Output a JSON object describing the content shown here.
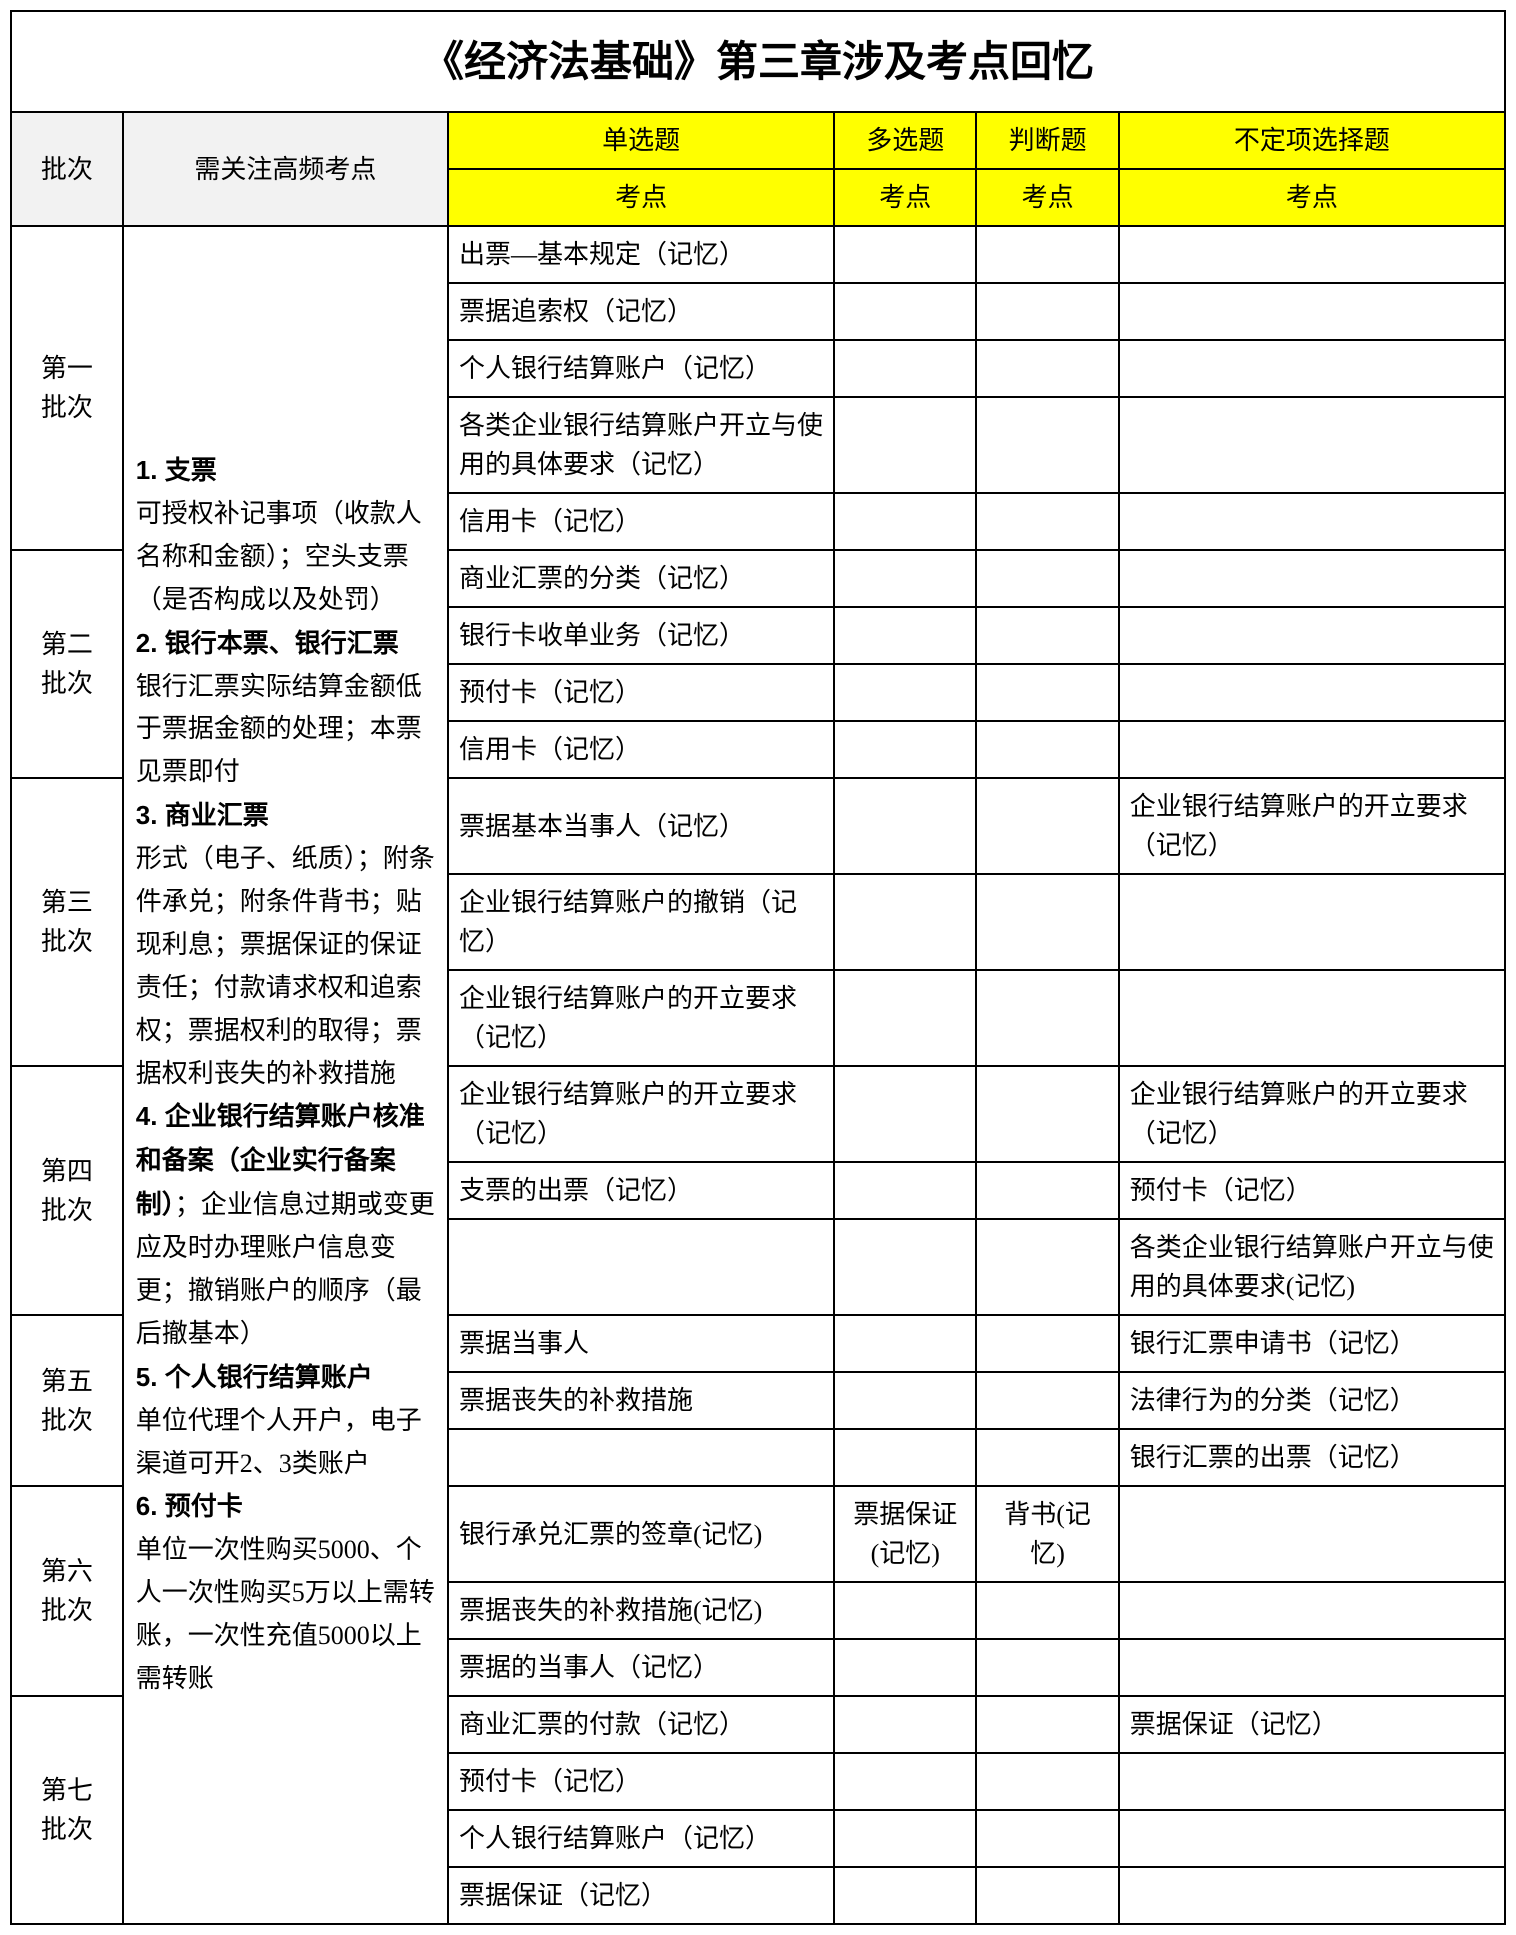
{
  "title": "《经济法基础》第三章涉及考点回忆",
  "headers": {
    "batch": "批次",
    "focus": "需关注高频考点",
    "single": "单选题",
    "multi": "多选题",
    "judge": "判断题",
    "undef": "不定项选择题",
    "kd": "考点"
  },
  "focus_points_html": "<b>1. 支票</b><br>可授权补记事项（收款人名称和金额）；空头支票（是否构成以及处罚）<br><b>2. 银行本票、银行汇票</b><br>银行汇票实际结算金额低于票据金额的处理；本票见票即付<br><b>3. 商业汇票</b><br>形式（电子、纸质）；附条件承兑；附条件背书；贴现利息；票据保证的保证责任；付款请求权和追索权；票据权利的取得；票据权利丧失的补救措施<br><b>4. 企业银行结算账户核准和备案（企业实行备案制）</b>；企业信息过期或变更应及时办理账户信息变更；撤销账户的顺序（最后撤基本）<br><b>5. 个人银行结算账户</b><br>单位代理个人开户，电子渠道可开2、3类账户<br><b>6. 预付卡</b><br>单位一次性购买5000、个人一次性购买5万以上需转账，一次性充值5000以上需转账",
  "batches": {
    "b1": "第一批次",
    "b2": "第二批次",
    "b3": "第三批次",
    "b4": "第四批次",
    "b5": "第五批次",
    "b6": "第六批次",
    "b7": "第七批次"
  },
  "rows": {
    "r1": {
      "s": "出票—基本规定（记忆）",
      "m": "",
      "j": "",
      "u": ""
    },
    "r2": {
      "s": "票据追索权（记忆）",
      "m": "",
      "j": "",
      "u": ""
    },
    "r3": {
      "s": "个人银行结算账户（记忆）",
      "m": "",
      "j": "",
      "u": ""
    },
    "r4": {
      "s": "各类企业银行结算账户开立与使用的具体要求（记忆）",
      "m": "",
      "j": "",
      "u": ""
    },
    "r5": {
      "s": "信用卡（记忆）",
      "m": "",
      "j": "",
      "u": ""
    },
    "r6": {
      "s": "商业汇票的分类（记忆）",
      "m": "",
      "j": "",
      "u": ""
    },
    "r7": {
      "s": "银行卡收单业务（记忆）",
      "m": "",
      "j": "",
      "u": ""
    },
    "r8": {
      "s": "预付卡（记忆）",
      "m": "",
      "j": "",
      "u": ""
    },
    "r9": {
      "s": "信用卡（记忆）",
      "m": "",
      "j": "",
      "u": ""
    },
    "r10": {
      "s": "票据基本当事人（记忆）",
      "m": "",
      "j": "",
      "u": "企业银行结算账户的开立要求（记忆）"
    },
    "r11": {
      "s": "企业银行结算账户的撤销（记忆）",
      "m": "",
      "j": "",
      "u": ""
    },
    "r12": {
      "s": "企业银行结算账户的开立要求（记忆）",
      "m": "",
      "j": "",
      "u": ""
    },
    "r13": {
      "s": "企业银行结算账户的开立要求（记忆）",
      "m": "",
      "j": "",
      "u": "企业银行结算账户的开立要求（记忆）"
    },
    "r14": {
      "s": "支票的出票（记忆）",
      "m": "",
      "j": "",
      "u": "预付卡（记忆）"
    },
    "r15": {
      "s": "",
      "m": "",
      "j": "",
      "u": "各类企业银行结算账户开立与使用的具体要求(记忆)"
    },
    "r16": {
      "s": "票据当事人",
      "m": "",
      "j": "",
      "u": "银行汇票申请书（记忆）"
    },
    "r17": {
      "s": "票据丧失的补救措施",
      "m": "",
      "j": "",
      "u": "法律行为的分类（记忆）"
    },
    "r18": {
      "s": "",
      "m": "",
      "j": "",
      "u": "银行汇票的出票（记忆）"
    },
    "r19": {
      "s": "银行承兑汇票的签章(记忆)",
      "m": "票据保证(记忆)",
      "j": "背书(记忆)",
      "u": ""
    },
    "r20": {
      "s": "票据丧失的补救措施(记忆)",
      "m": "",
      "j": "",
      "u": ""
    },
    "r21": {
      "s": "票据的当事人（记忆）",
      "m": "",
      "j": "",
      "u": ""
    },
    "r22": {
      "s": "商业汇票的付款（记忆）",
      "m": "",
      "j": "",
      "u": "票据保证（记忆）"
    },
    "r23": {
      "s": "预付卡（记忆）",
      "m": "",
      "j": "",
      "u": ""
    },
    "r24": {
      "s": "个人银行结算账户（记忆）",
      "m": "",
      "j": "",
      "u": ""
    },
    "r25": {
      "s": "票据保证（记忆）",
      "m": "",
      "j": "",
      "u": ""
    }
  },
  "colors": {
    "header_bg": "#f2f2f2",
    "highlight_bg": "#ffff00",
    "border": "#000000",
    "text": "#000000"
  }
}
